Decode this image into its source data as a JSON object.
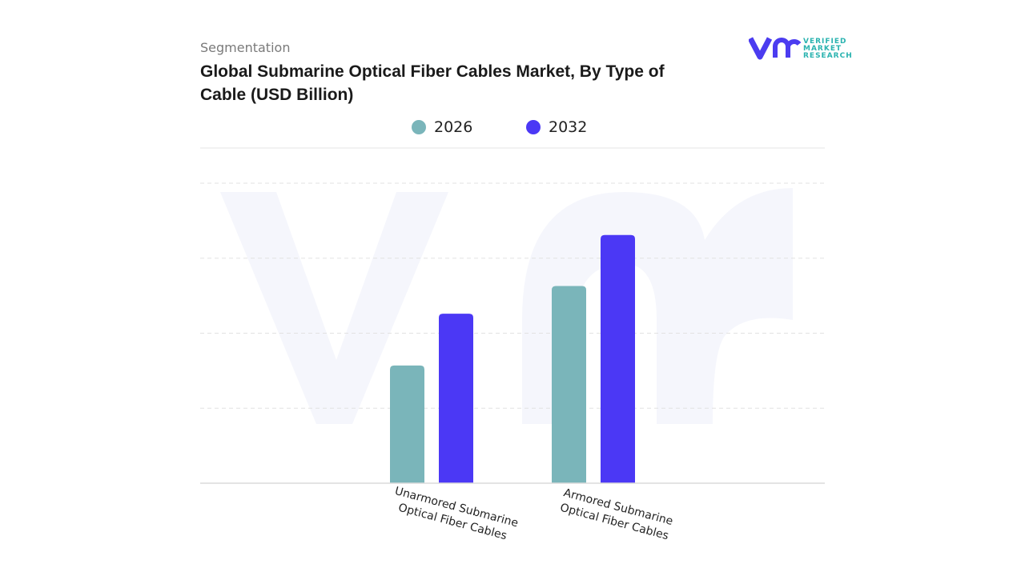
{
  "header": {
    "section": "Segmentation",
    "title": "Global Submarine Optical Fiber Cables Market, By Type of Cable (USD Billion)"
  },
  "logo": {
    "mark": "vmr",
    "line1": "VERIFIED",
    "line2": "MARKET",
    "line3": "RESEARCH",
    "color": "#4b3cf0",
    "text_color": "#2ab3b0"
  },
  "chart_data": {
    "type": "bar",
    "title": "Global Submarine Optical Fiber Cables Market, By Type of Cable (USD Billion)",
    "categories": [
      [
        "Unarmored Submarine",
        "Optical Fiber Cables"
      ],
      [
        "Armored Submarine",
        "Optical Fiber Cables"
      ]
    ],
    "series": [
      {
        "name": "2026",
        "color": "#7ab5ba",
        "values": [
          1.57,
          2.63
        ]
      },
      {
        "name": "2032",
        "color": "#4b38f5",
        "values": [
          2.26,
          3.31
        ]
      }
    ],
    "ylim": [
      0,
      4.5
    ],
    "grid": true,
    "legend": "top-center",
    "xlabel": "",
    "ylabel": ""
  }
}
